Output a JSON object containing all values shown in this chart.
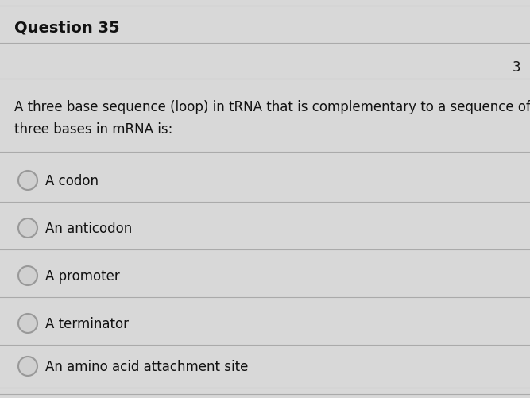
{
  "title": "Question 35",
  "page_number": "3",
  "question_text_line1": "A three base sequence (loop) in tRNA that is complementary to a sequence of",
  "question_text_line2": "three bases in mRNA is:",
  "options": [
    "A codon",
    "An anticodon",
    "A promoter",
    "A terminator",
    "An amino acid attachment site"
  ],
  "bg_color": "#c8c8c8",
  "card_color": "#d8d8d8",
  "title_fontsize": 14,
  "question_fontsize": 12,
  "option_fontsize": 12,
  "border_color": "#aaaaaa",
  "text_color": "#111111",
  "circle_color": "#999999",
  "circle_fill": "#d0d0d0"
}
